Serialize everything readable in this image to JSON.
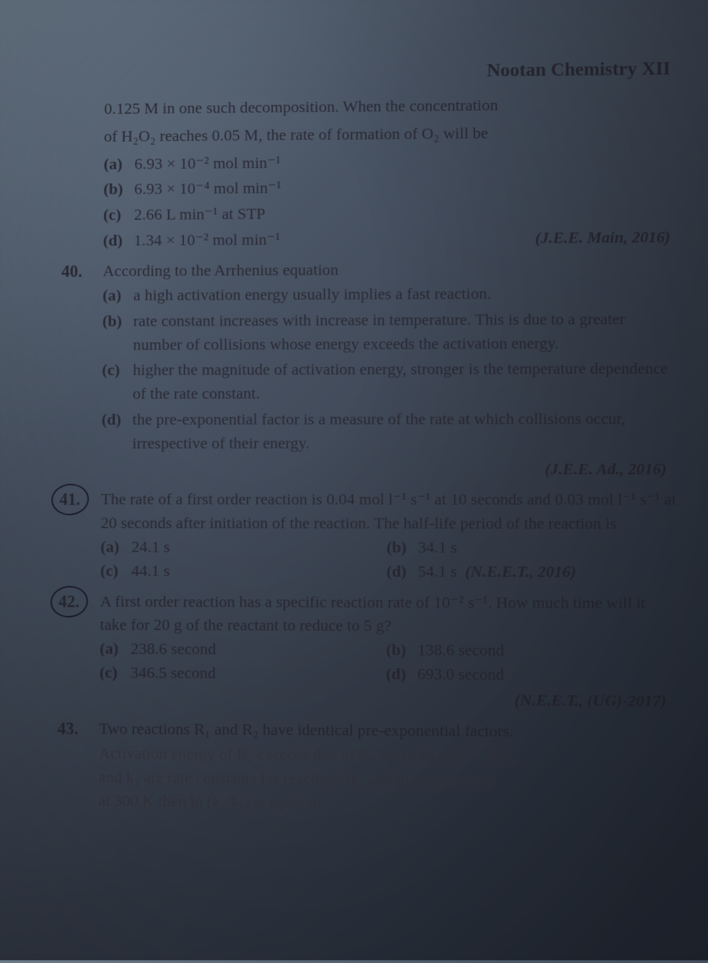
{
  "header": {
    "book_title": "Nootan Chemistry XII"
  },
  "q39_cont": {
    "intro_line1": "0.125 M in one such decomposition. When the concentration",
    "intro_line2": "of H₂O₂ reaches 0.05 M, the rate of formation of O₂ will be",
    "options": {
      "a": "6.93 × 10⁻² mol min⁻¹",
      "b": "6.93 × 10⁻⁴ mol min⁻¹",
      "c": "2.66 L min⁻¹ at STP",
      "d": "1.34 × 10⁻² mol min⁻¹"
    },
    "source": "(J.E.E. Main, 2016)"
  },
  "q40": {
    "num": "40.",
    "text": "According to the Arrhenius equation",
    "options": {
      "a": "a high activation energy usually implies a fast reaction.",
      "b": "rate constant increases with increase in temperature. This is due to a greater number of collisions whose energy exceeds the activation energy.",
      "c": "higher the magnitude of activation energy, stronger is the temperature dependence of the rate constant.",
      "d": "the pre-exponential factor is a measure of the rate at which collisions occur, irrespective of their energy."
    },
    "source": "(J.E.E. Ad., 2016)"
  },
  "q41": {
    "num": "41.",
    "text": "The rate of a first order reaction is 0.04 mol l⁻¹ s⁻¹ at 10 seconds and 0.03 mol l⁻¹ s⁻¹ at 20 seconds after initiation of the reaction. The half-life period of the reaction is",
    "options": {
      "a": "24.1 s",
      "b": "34.1 s",
      "c": "44.1 s",
      "d": "54.1 s"
    },
    "source": "(N.E.E.T., 2016)"
  },
  "q42": {
    "num": "42.",
    "text": "A first order reaction has a specific reaction rate of 10⁻² s⁻¹. How much time will it take for 20 g of the reactant to reduce to 5 g?",
    "options": {
      "a": "238.6 second",
      "b": "138.6 second",
      "c": "346.5 second",
      "d": "693.0 second"
    },
    "source": "(N.E.E.T., (UG)-2017)"
  },
  "q43": {
    "num": "43.",
    "text_line1": "Two reactions R₁ and R₂ have identical pre-exponential factors.",
    "text_line2": "Activation energy of R₁ exceeds that of R₂ by 10 kJ mol⁻¹. If k₁",
    "text_line3": "and k₂ are rate constants for reactions R₁ and R₂ respectively",
    "text_line4": "at 300 K then ln (k₂/k₁) is equal to"
  }
}
